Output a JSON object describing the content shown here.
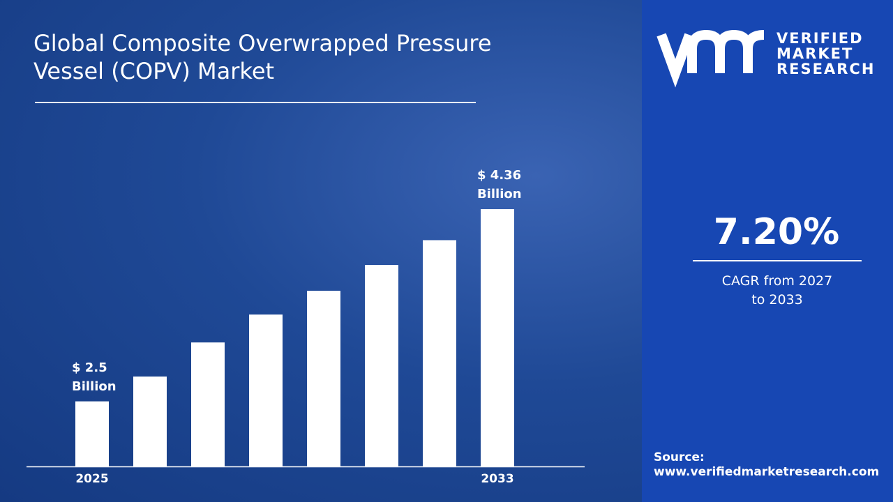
{
  "chart_data": {
    "type": "bar",
    "title": "Global Composite Overwrapped Pressure Vessel (COPV) Market",
    "categories": [
      "2025",
      null,
      null,
      null,
      null,
      null,
      null,
      "2033"
    ],
    "values": [
      2.5,
      2.74,
      3.07,
      3.34,
      3.57,
      3.82,
      4.06,
      4.36
    ],
    "value_labels": [
      "$ 2.5 Billion",
      null,
      null,
      null,
      null,
      null,
      null,
      "$ 4.36 Billion"
    ],
    "color": "#ffffff",
    "ylim": [
      1.87,
      4.36
    ]
  },
  "logo": {
    "line1": "VERIFIED",
    "line2": "MARKET",
    "line3": "RESEARCH"
  },
  "sidebar": {
    "cagr": "7.20%",
    "cagr_label": "CAGR from 2027 to 2033",
    "source_label": "Source:",
    "source_url": "www.verifiedmarketresearch.com"
  }
}
